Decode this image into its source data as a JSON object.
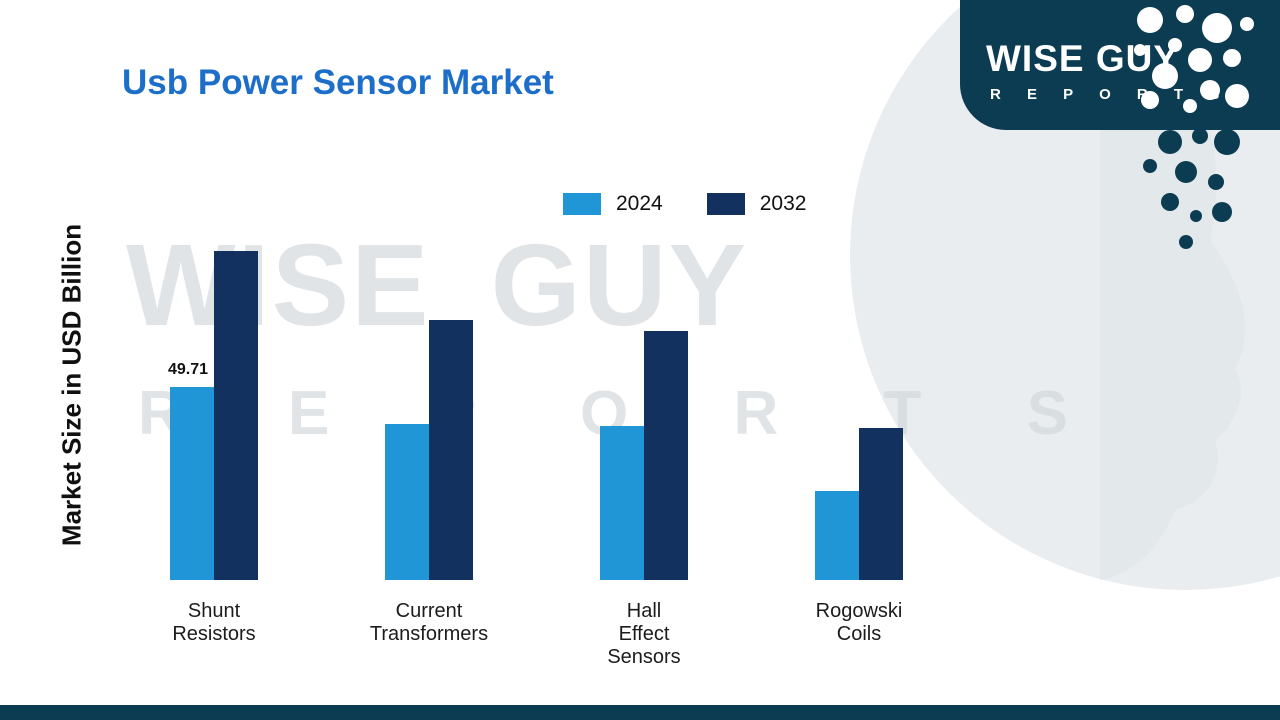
{
  "header": {
    "title": "Usb Power Sensor Market"
  },
  "logo": {
    "line1": "WISE GUY",
    "line2": "R E P O R T S"
  },
  "watermark": {
    "line1": "WISE GUY",
    "line2": "R E P O R T S"
  },
  "chart_data": {
    "type": "bar",
    "title": "Usb Power Sensor Market",
    "ylabel": "Market Size in USD Billion",
    "ylim": [
      0,
      90
    ],
    "grid": false,
    "legend_position": "top-center",
    "categories": [
      {
        "name": "Shunt Resistors",
        "lines": [
          "Shunt",
          "Resistors"
        ]
      },
      {
        "name": "Current Transformers",
        "lines": [
          "Current",
          "Transformers"
        ]
      },
      {
        "name": "Hall Effect Sensors",
        "lines": [
          "Hall",
          "Effect",
          "Sensors"
        ]
      },
      {
        "name": "Rogowski Coils",
        "lines": [
          "Rogowski",
          "Coils"
        ]
      }
    ],
    "series": [
      {
        "name": "2024",
        "color": "#2196d6",
        "values": [
          49.71,
          40.0,
          39.5,
          23.0
        ]
      },
      {
        "name": "2032",
        "color": "#12315e",
        "values": [
          84.5,
          66.8,
          64.0,
          39.0
        ]
      }
    ],
    "data_labels": [
      {
        "series": "2024",
        "category": "Shunt Resistors",
        "text": "49.71"
      }
    ]
  },
  "colors": {
    "title_blue": "#1d6ec9",
    "bar_2024": "#2196d6",
    "bar_2032": "#12315e",
    "brand_dark": "#0b3c52",
    "watermark_gray": "#d2d7da"
  }
}
